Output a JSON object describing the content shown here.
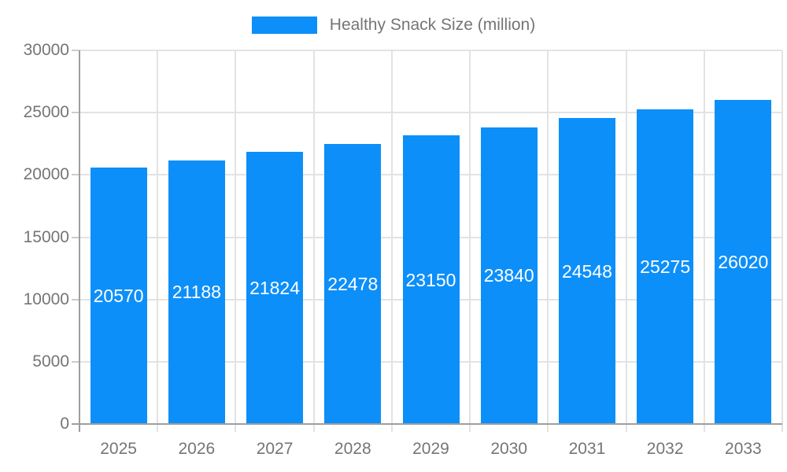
{
  "legend": {
    "label": "Healthy Snack Size (million)"
  },
  "colors": {
    "bar": "#0D8FF9",
    "axis_text": "#757575",
    "axis_line": "#9e9e9e",
    "grid_line": "#e3e3e3",
    "tick_line": "#cccccc",
    "value_label": "#ffffff",
    "background": "#ffffff"
  },
  "chart_data": {
    "type": "bar",
    "title": "",
    "series_name": "Healthy Snack Size (million)",
    "categories": [
      "2025",
      "2026",
      "2027",
      "2028",
      "2029",
      "2030",
      "2031",
      "2032",
      "2033"
    ],
    "values": [
      20570,
      21188,
      21824,
      22478,
      23150,
      23840,
      24548,
      25275,
      26020
    ],
    "xlabel": "",
    "ylabel": "",
    "ylim": [
      0,
      30000
    ],
    "ytick_step": 5000,
    "yticks": [
      0,
      5000,
      10000,
      15000,
      20000,
      25000,
      30000
    ],
    "grid": true,
    "legend_position": "top-center",
    "value_labels": "inside-middle"
  }
}
